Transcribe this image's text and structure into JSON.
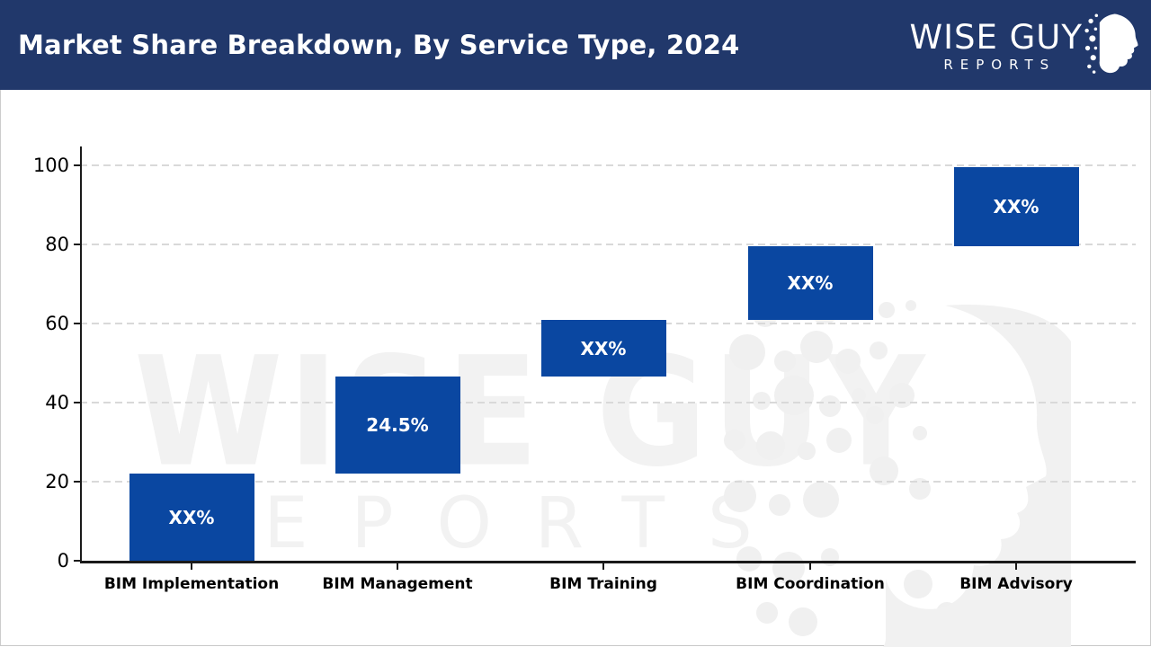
{
  "header": {
    "title": "Market Share Breakdown, By Service Type, 2024",
    "logo": {
      "line1": "WISE GUY",
      "line2": "REPORTS"
    }
  },
  "watermark": {
    "line1": "WISE GUY",
    "line2": "REPORTS"
  },
  "chart_data": {
    "type": "bar",
    "subtype": "waterfall",
    "title": "Market Share Breakdown, By Service Type, 2024",
    "categories": [
      "BIM Implementation",
      "BIM Management",
      "BIM Training",
      "BIM Coordination",
      "BIM Advisory"
    ],
    "segments": [
      {
        "category": "BIM Implementation",
        "start": 0,
        "end": 22,
        "value": 22,
        "label": "XX%"
      },
      {
        "category": "BIM Management",
        "start": 22,
        "end": 46.5,
        "value": 24.5,
        "label": "24.5%"
      },
      {
        "category": "BIM Training",
        "start": 46.5,
        "end": 61,
        "value": 14.5,
        "label": "XX%"
      },
      {
        "category": "BIM Coordination",
        "start": 61,
        "end": 79.5,
        "value": 18.5,
        "label": "XX%"
      },
      {
        "category": "BIM Advisory",
        "start": 79.5,
        "end": 99.5,
        "value": 20,
        "label": "XX%"
      }
    ],
    "ylim": [
      0,
      105
    ],
    "yticks": [
      0,
      20,
      40,
      60,
      80,
      100
    ],
    "xlabel": "",
    "ylabel": "",
    "grid": "horizontal-dashed",
    "legend": "none",
    "colors": {
      "bar": "#0a47a1",
      "bar_label": "#ffffff",
      "grid": "#d9d9d9",
      "axis": "#1a1a1a",
      "header_bg": "#21386b",
      "watermark": "#f2f2f2"
    }
  }
}
